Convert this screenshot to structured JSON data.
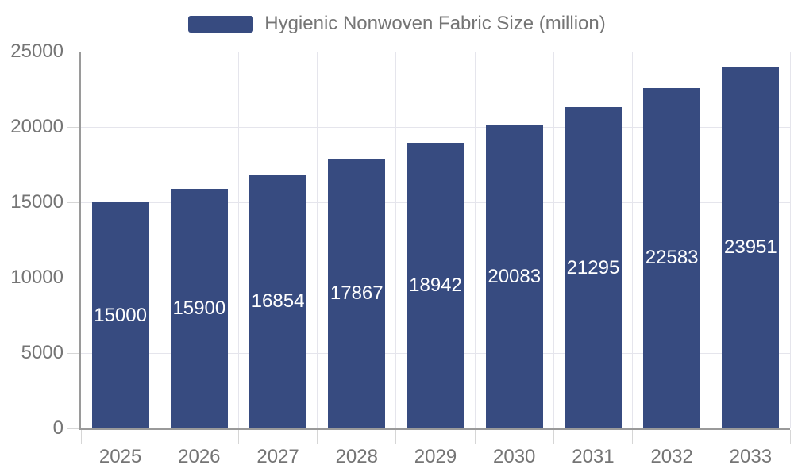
{
  "legend": {
    "label": "Hygienic Nonwoven Fabric Size (million)",
    "swatch_color": "#374B80",
    "text_color": "#757575"
  },
  "chart_data": {
    "type": "bar",
    "title": "Hygienic Nonwoven Fabric Size (million)",
    "categories": [
      "2025",
      "2026",
      "2027",
      "2028",
      "2029",
      "2030",
      "2031",
      "2032",
      "2033"
    ],
    "values": [
      15000,
      15900,
      16854,
      17867,
      18942,
      20083,
      21295,
      22583,
      23951
    ],
    "value_labels": [
      "15000",
      "15900",
      "16854",
      "17867",
      "18942",
      "20083",
      "21295",
      "22583",
      "23951"
    ],
    "xlabel": "",
    "ylabel": "",
    "ylim": [
      0,
      25000
    ],
    "yticks": [
      0,
      5000,
      10000,
      15000,
      20000,
      25000
    ],
    "ytick_labels": [
      "0",
      "5000",
      "10000",
      "15000",
      "20000",
      "25000"
    ],
    "grid": true,
    "legend_position": "top-center",
    "bar_color": "#374B80",
    "value_label_color": "#ffffff",
    "axis_line_color": "#9a9a9a",
    "tick_color": "#d6d6d6",
    "gridline_color": "#e5e5ec",
    "axis_text_color": "#757575"
  }
}
